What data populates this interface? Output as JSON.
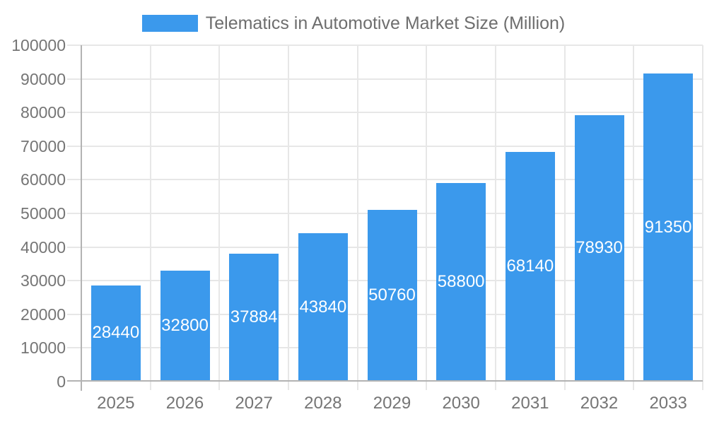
{
  "legend": {
    "label": "Telematics in Automotive Market Size (Million)"
  },
  "chart_data": {
    "type": "bar",
    "title": "Telematics in Automotive Market Size (Million)",
    "categories": [
      "2025",
      "2026",
      "2027",
      "2028",
      "2029",
      "2030",
      "2031",
      "2032",
      "2033"
    ],
    "values": [
      28440,
      32800,
      37884,
      43840,
      50760,
      58800,
      68140,
      78930,
      91350
    ],
    "bar_value_labels": [
      "28440",
      "32800",
      "37884",
      "43840",
      "50760",
      "58800",
      "68140",
      "78930",
      "91350"
    ],
    "xlabel": "",
    "ylabel": "",
    "ylim": [
      0,
      100000
    ],
    "ytick_step": 10000,
    "ytick_labels": [
      "0",
      "10000",
      "20000",
      "30000",
      "40000",
      "50000",
      "60000",
      "70000",
      "80000",
      "90000",
      "100000"
    ],
    "grid": true,
    "legend_position": "top",
    "colors": {
      "bar": "#3b99ec",
      "bar_label": "#ffffff",
      "axis_text": "#757575",
      "title_text": "#6e6e6e",
      "gridline": "#e7e7e7",
      "axis_line": "#b3b3b3",
      "background": "#ffffff"
    }
  }
}
